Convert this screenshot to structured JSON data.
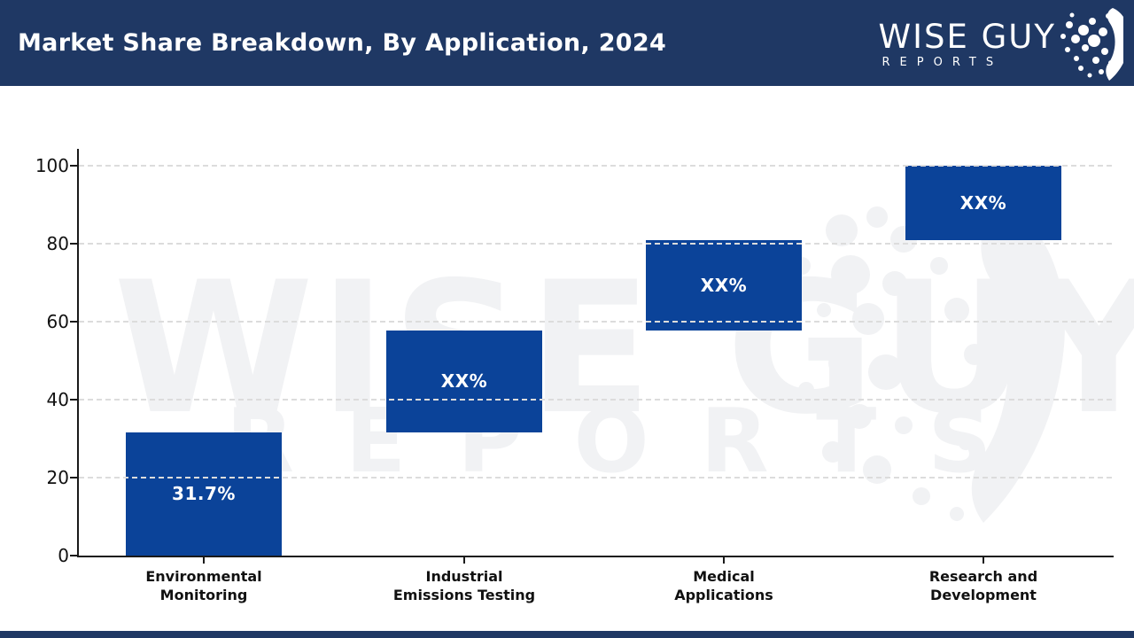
{
  "header": {
    "title": "Market Share Breakdown, By Application, 2024",
    "logo": {
      "line1": "WISE GUY",
      "line2": "REPORTS"
    }
  },
  "watermark": {
    "line1": "WISE GUY",
    "line2": "REPORTS"
  },
  "chart_data": {
    "type": "bar",
    "subtype": "waterfall",
    "title": "Market Share Breakdown, By Application, 2024",
    "categories": [
      [
        "Environmental",
        "Monitoring"
      ],
      [
        "Industrial",
        "Emissions Testing"
      ],
      [
        "Medical",
        "Applications"
      ],
      [
        "Research and",
        "Development"
      ]
    ],
    "bars": [
      {
        "start": 0,
        "end": 31.7,
        "label": "31.7%"
      },
      {
        "start": 31.7,
        "end": 57.7,
        "label": "XX%"
      },
      {
        "start": 57.7,
        "end": 80.9,
        "label": "XX%"
      },
      {
        "start": 80.9,
        "end": 100,
        "label": "XX%"
      }
    ],
    "yticks": [
      0,
      20,
      40,
      60,
      80,
      100
    ],
    "ylim": [
      0,
      100
    ],
    "grid": "horizontal-dashed",
    "legend": false,
    "bar_color": "#0b4399",
    "bar_label_color": "#ffffff"
  },
  "colors": {
    "header_bg": "#1f3864",
    "footer_bg": "#1f3864",
    "bar": "#0b4399",
    "grid": "#dcdcdc",
    "watermark": "#f1f2f4"
  }
}
